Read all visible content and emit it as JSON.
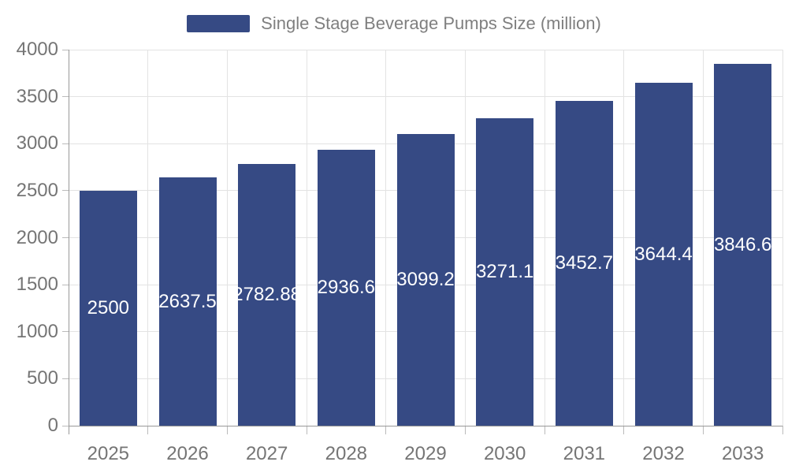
{
  "legend": {
    "label": "Single Stage Beverage Pumps Size (million)"
  },
  "chart_data": {
    "type": "bar",
    "title": "Single Stage Beverage Pumps Size (million)",
    "categories": [
      "2025",
      "2026",
      "2027",
      "2028",
      "2029",
      "2030",
      "2031",
      "2032",
      "2033"
    ],
    "values": [
      2500,
      2637.5,
      2782.88,
      2936.6,
      3099.2,
      3271.1,
      3452.7,
      3644.4,
      3846.6
    ],
    "value_labels": [
      "2500",
      "2637.5",
      "2782.88",
      "2936.6",
      "3099.2",
      "3271.1",
      "3452.7",
      "3644.4",
      "3846.6"
    ],
    "xlabel": "",
    "ylabel": "",
    "ylim": [
      0,
      4000
    ],
    "ytick_interval": 500,
    "ytick_labels": [
      "0",
      "500",
      "1000",
      "1500",
      "2000",
      "2500",
      "3000",
      "3500",
      "4000"
    ],
    "grid": true,
    "legend_position": "top",
    "colors": {
      "bar": "#364A84",
      "grid": "#e3e3e3",
      "axis_line": "#999999",
      "tick": "#bbbbbb",
      "axis_text": "#757575",
      "legend_text": "#7f7f7f",
      "bar_label_text": "#ffffff"
    }
  }
}
